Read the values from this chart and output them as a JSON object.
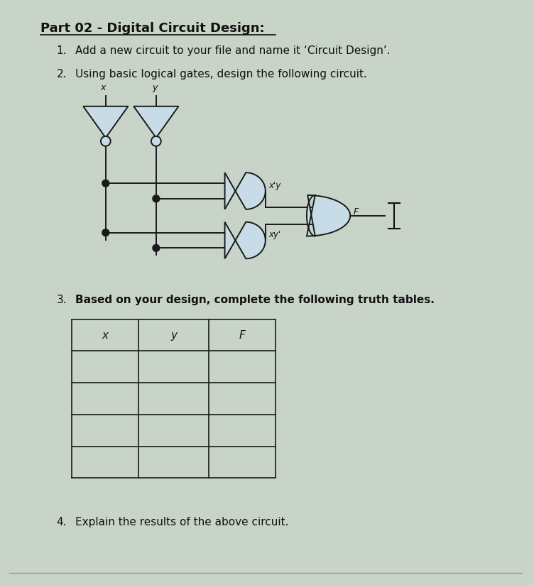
{
  "title": "Part 02 - Digital Circuit Design:",
  "item1": "Add a new circuit to your file and name it ‘Circuit Design’.",
  "item2": "Using basic logical gates, design the following circuit.",
  "item3": "Based on your design, complete the following truth tables.",
  "item4": "Explain the results of the above circuit.",
  "bg_color": "#c8d4c8",
  "table_headers": [
    "x",
    "y",
    "F"
  ],
  "table_rows": 4,
  "wire_color": "#1a1a1a",
  "gate_fill": "#c8dce8",
  "gate_edge": "#1a1a1a",
  "label_color": "#111111",
  "font_size_title": 12,
  "font_size_body": 11
}
